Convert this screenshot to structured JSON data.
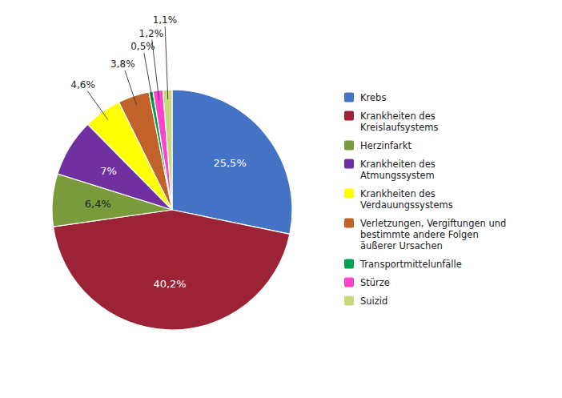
{
  "chart_data": {
    "type": "pie",
    "categories": [
      "Krebs",
      "Krankheiten des\nKreislaufsystems",
      "Herzinfarkt",
      "Krankheiten des\nAtmungssystem",
      "Krankheiten des\nVerdauungssystems",
      "Verletzungen, Vergiftungen und\nbestimmte andere Folgen\näußerer Ursachen",
      "Transportmittelunfälle",
      "Stürze",
      "Suizid"
    ],
    "values": [
      25.5,
      40.2,
      6.4,
      7.0,
      4.6,
      3.8,
      0.5,
      1.2,
      1.1
    ],
    "value_labels": [
      "25,5%",
      "40,2%",
      "6,4%",
      "7%",
      "4,6%",
      "3,8%",
      "0,5%",
      "1,2%",
      "1,1%"
    ],
    "colors": [
      "#4472C4",
      "#9B2335",
      "#7A9B3C",
      "#7030A0",
      "#FFFF00",
      "#C0622A",
      "#00A050",
      "#FF44CC",
      "#C8D87A"
    ],
    "data_labels": true,
    "legend": "right"
  }
}
